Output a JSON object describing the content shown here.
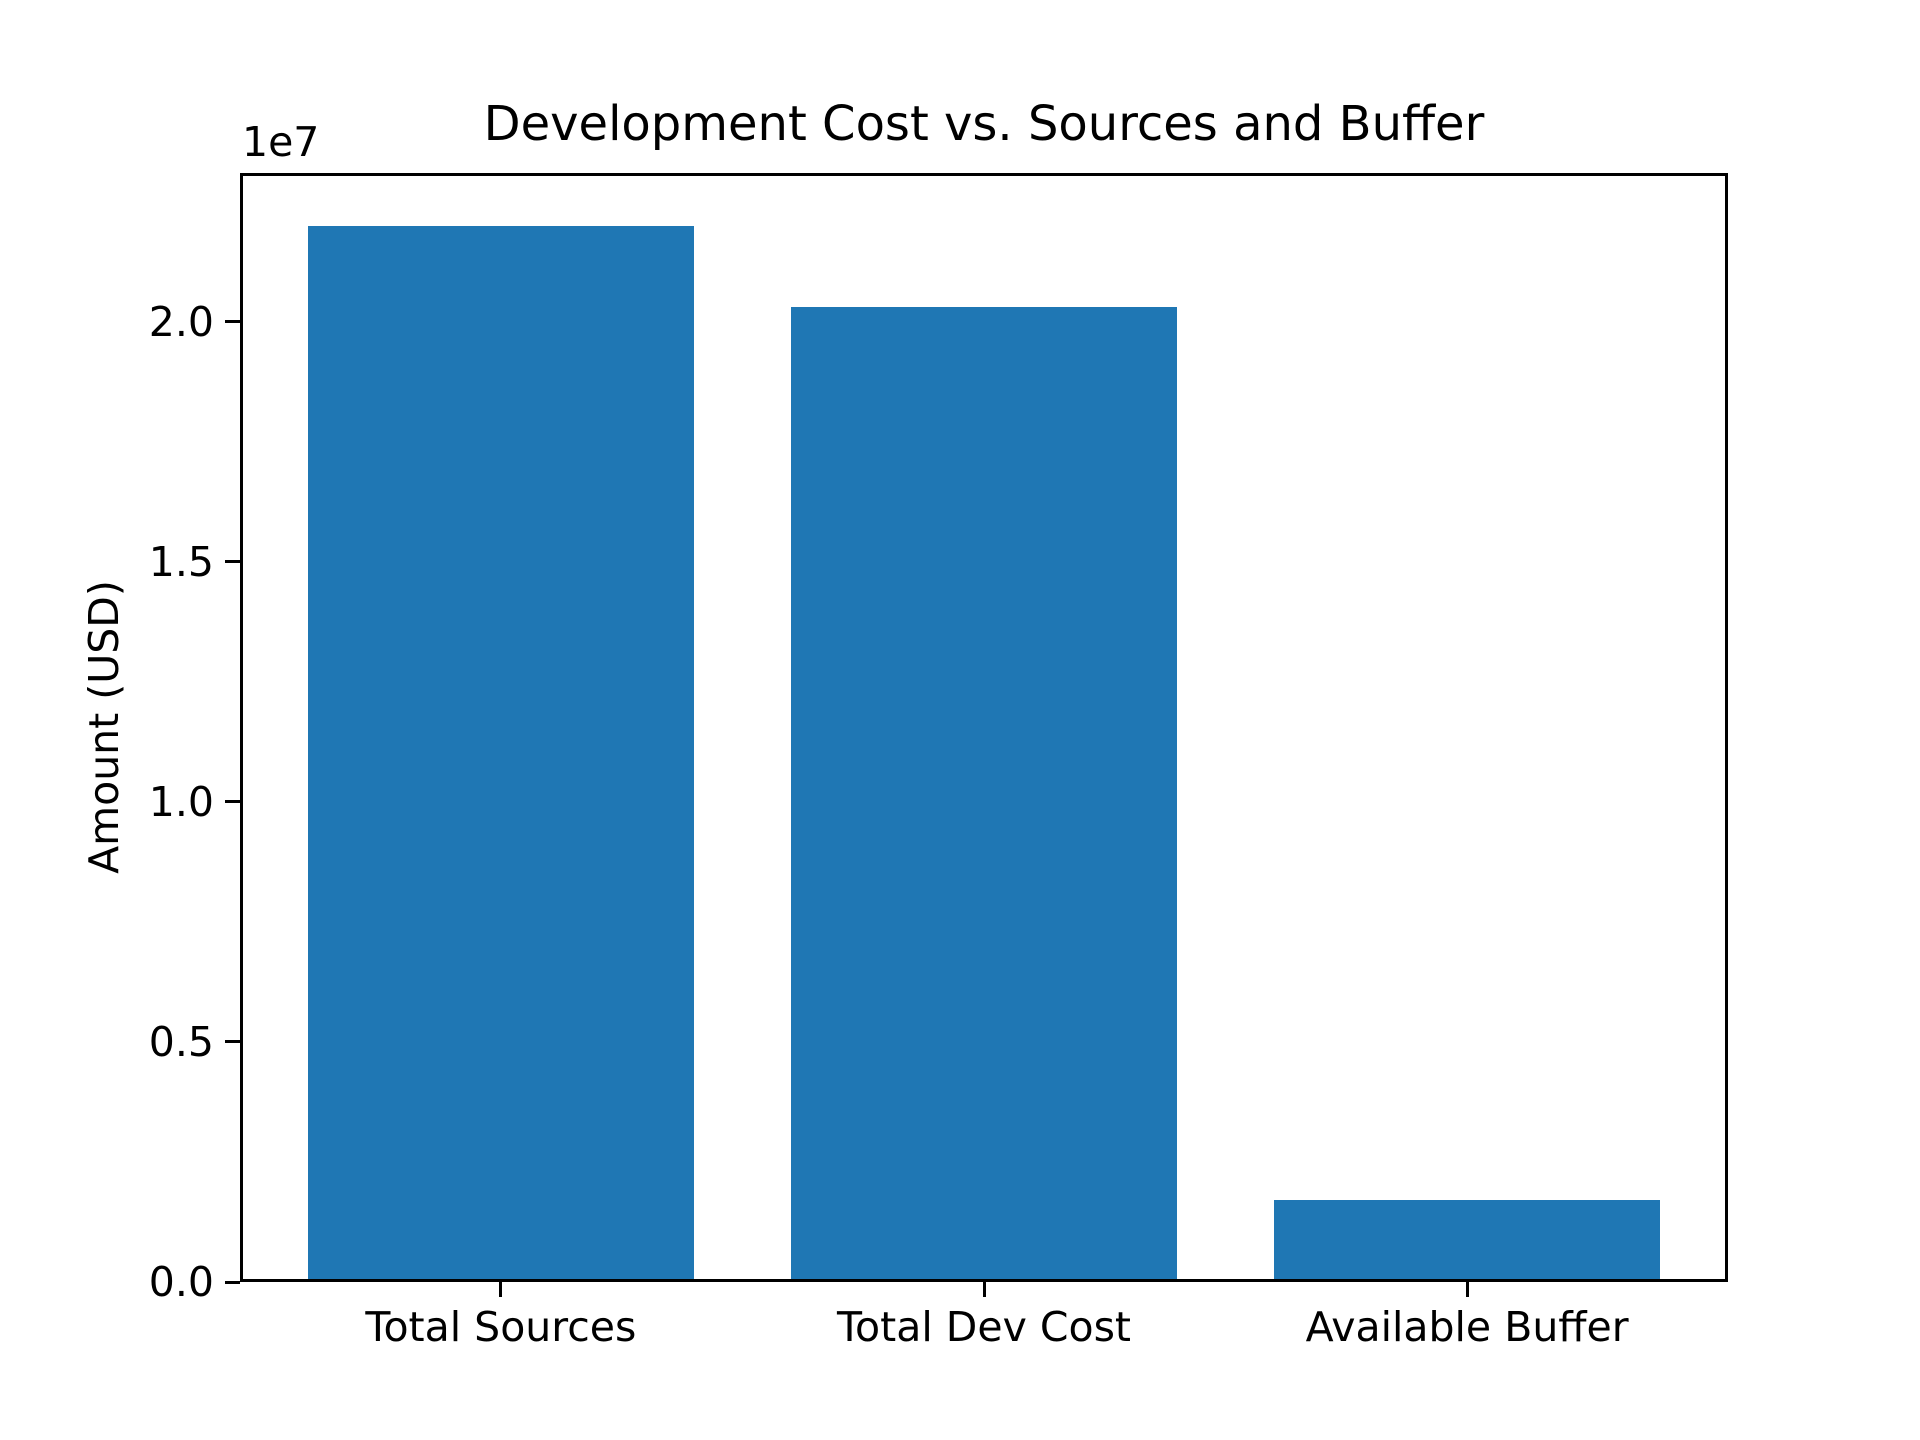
{
  "chart_data": {
    "type": "bar",
    "title": "Development Cost vs. Sources and Buffer",
    "categories": [
      "Total Sources",
      "Total Dev Cost",
      "Available Buffer"
    ],
    "values": [
      22000000,
      20300000,
      1700000
    ],
    "xlabel": "",
    "ylabel": "Amount (USD)",
    "y_offset_label": "1e7",
    "ytick_labels": [
      "0.0",
      "0.5",
      "1.0",
      "1.5",
      "2.0"
    ],
    "ytick_values": [
      0,
      5000000,
      10000000,
      15000000,
      20000000
    ],
    "ylim": [
      0,
      23100000
    ],
    "bar_width_fraction": 0.8,
    "bar_color": "#1f77b4",
    "axis_color": "#000000",
    "background_color": "#ffffff",
    "grid": false,
    "legend": null
  }
}
